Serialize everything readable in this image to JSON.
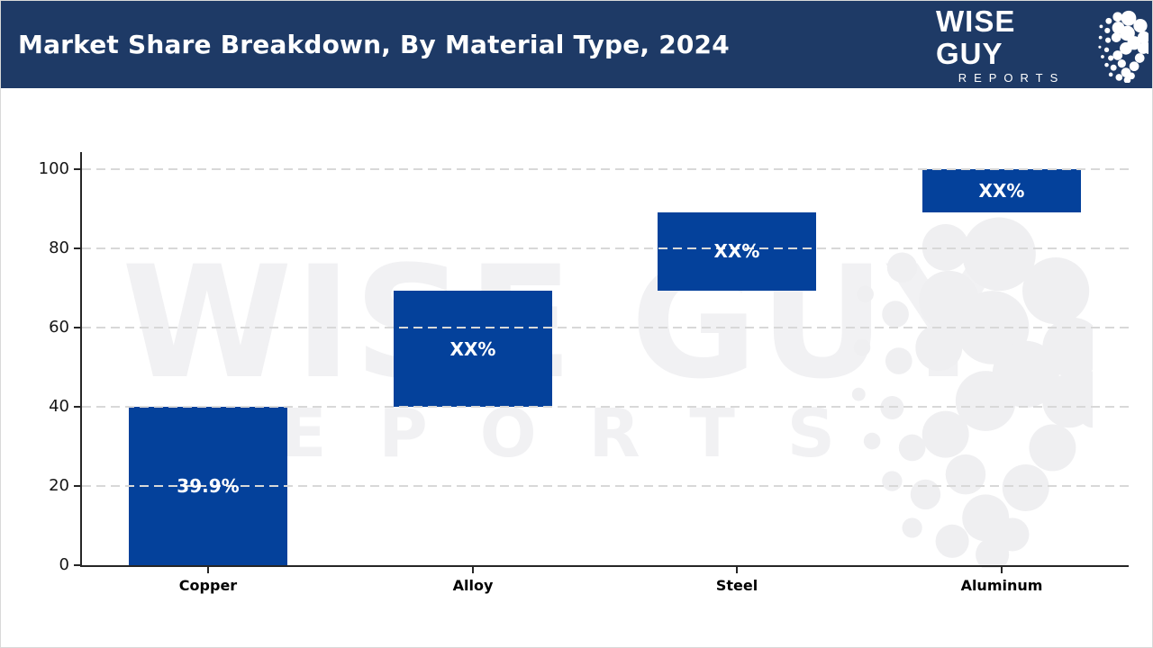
{
  "header": {
    "title": "Market Share Breakdown, By Material Type, 2024",
    "bg_color": "#1e3a66",
    "logo": {
      "name": "WISE GUY",
      "tagline": "REPORTS"
    }
  },
  "watermark": {
    "line1": "WISE GUY",
    "line2": "REPORTS"
  },
  "chart_data": {
    "type": "bar",
    "subtype": "waterfall-floating-bars",
    "title": "Market Share Breakdown, By Material Type, 2024",
    "categories": [
      "Copper",
      "Alloy",
      "Steel",
      "Aluminum"
    ],
    "segments": [
      [
        0,
        39.9
      ],
      [
        39.9,
        69.3
      ],
      [
        69.3,
        89.2
      ],
      [
        89.2,
        100
      ]
    ],
    "bar_labels": [
      "39.9%",
      "XX%",
      "XX%",
      "XX%"
    ],
    "bar_color": "#04419b",
    "bar_label_color": "#ffffff",
    "yticks": [
      0,
      20,
      40,
      60,
      80,
      100
    ],
    "ylim": [
      0,
      104
    ],
    "xlabel": "",
    "ylabel": "",
    "grid": "horizontal-dashed",
    "grid_color": "#d8d8d8",
    "legend": "none"
  }
}
